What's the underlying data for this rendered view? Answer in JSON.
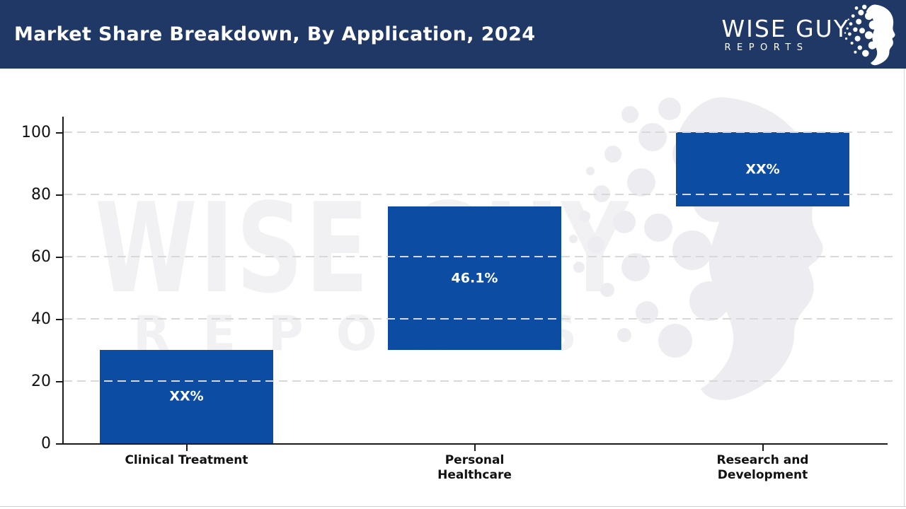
{
  "header": {
    "title": "Market Share Breakdown, By Application, 2024",
    "logo": {
      "line1": "WISE GUY",
      "line2": "REPORTS"
    }
  },
  "watermark": {
    "line1": "WISE GUY",
    "line2": "REPORTS"
  },
  "chart_data": {
    "type": "bar",
    "subtype": "floating-segment-waterfall",
    "title": "Market Share Breakdown, By Application, 2024",
    "xlabel": "",
    "ylabel": "",
    "ylim": [
      0,
      100
    ],
    "yticks": [
      0,
      20,
      40,
      60,
      80,
      100
    ],
    "grid": "dashed-horizontal",
    "legend": "none",
    "bar_color": "#0C4DA3",
    "categories": [
      "Clinical Treatment",
      "Personal Healthcare",
      "Research and Development"
    ],
    "bars": [
      {
        "category": "Clinical Treatment",
        "category_lines": [
          "Clinical Treatment"
        ],
        "from": 0,
        "to": 30,
        "value": 30,
        "label": "XX%"
      },
      {
        "category": "Personal Healthcare",
        "category_lines": [
          "Personal",
          "Healthcare"
        ],
        "from": 30,
        "to": 76.1,
        "value": 46.1,
        "label": "46.1%"
      },
      {
        "category": "Research and Development",
        "category_lines": [
          "Research and",
          "Development"
        ],
        "from": 76.1,
        "to": 100,
        "value": 23.9,
        "label": "XX%"
      }
    ]
  },
  "colors": {
    "header_bg": "#1F3866",
    "bar": "#0C4DA3",
    "grid": "#d8d8d8",
    "axis": "#1a1a1a",
    "text": "#111111",
    "bar_label": "#ffffff",
    "watermark": "#f1f1f4"
  }
}
